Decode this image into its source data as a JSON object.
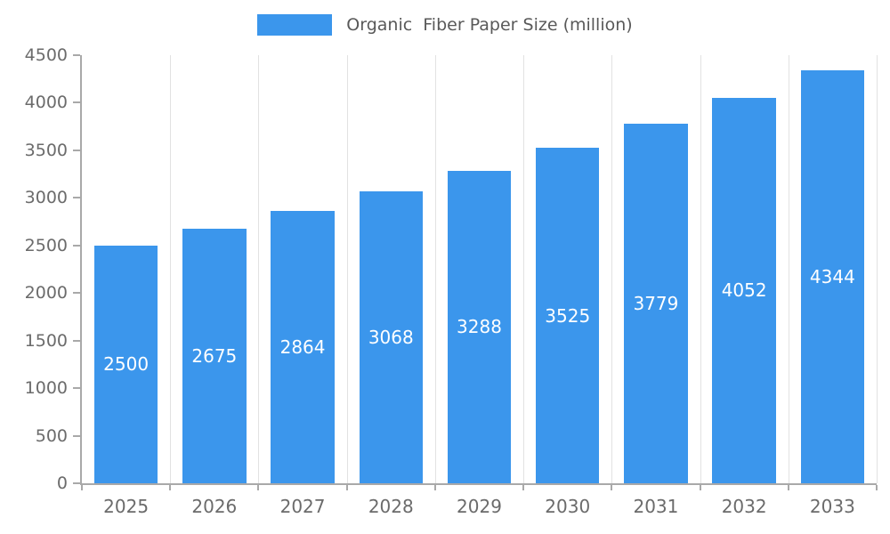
{
  "legend": {
    "label": "Organic  Fiber Paper Size (million)",
    "swatch_color": "#3b96ec"
  },
  "chart_data": {
    "type": "bar",
    "title": "Organic  Fiber Paper Size (million)",
    "categories": [
      "2025",
      "2026",
      "2027",
      "2028",
      "2029",
      "2030",
      "2031",
      "2032",
      "2033"
    ],
    "values": [
      2500,
      2675,
      2864,
      3068,
      3288,
      3525,
      3779,
      4052,
      4344
    ],
    "xlabel": "",
    "ylabel": "",
    "ylim": [
      0,
      4500
    ],
    "ytick_step": 500,
    "grid": "vertical",
    "legend_position": "top",
    "bar_color": "#3b96ec",
    "value_label_color": "#ffffff",
    "axis_color": "#a9a9a9",
    "tick_label_color": "#6b6b6b"
  }
}
